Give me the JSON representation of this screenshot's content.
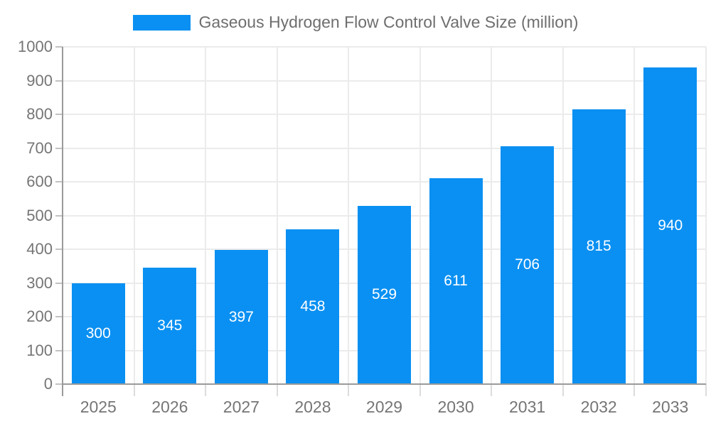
{
  "chart_data": {
    "type": "bar",
    "title": "Gaseous Hydrogen Flow Control Valve Size (million)",
    "categories": [
      "2025",
      "2026",
      "2027",
      "2028",
      "2029",
      "2030",
      "2031",
      "2032",
      "2033"
    ],
    "values": [
      300,
      345,
      397,
      458,
      529,
      611,
      706,
      815,
      940
    ],
    "series": [
      {
        "name": "Gaseous Hydrogen Flow Control Valve Size (million)",
        "values": [
          300,
          345,
          397,
          458,
          529,
          611,
          706,
          815,
          940
        ]
      }
    ],
    "xlabel": "",
    "ylabel": "",
    "ylim": [
      0,
      1000
    ],
    "yticks": [
      0,
      100,
      200,
      300,
      400,
      500,
      600,
      700,
      800,
      900,
      1000
    ],
    "grid": true,
    "legend_position": "top",
    "bar_labels_visible": true,
    "colors": {
      "bar": "#0a90f2",
      "grid": "#ebebeb",
      "axis": "#9a9a9a",
      "y_tick": "#c2c2c2",
      "x_tick": "#dcdcdc",
      "tick_label": "#757575",
      "legend_label": "#6e6e6e",
      "bar_label": "#ffffff",
      "background": "#ffffff"
    }
  }
}
